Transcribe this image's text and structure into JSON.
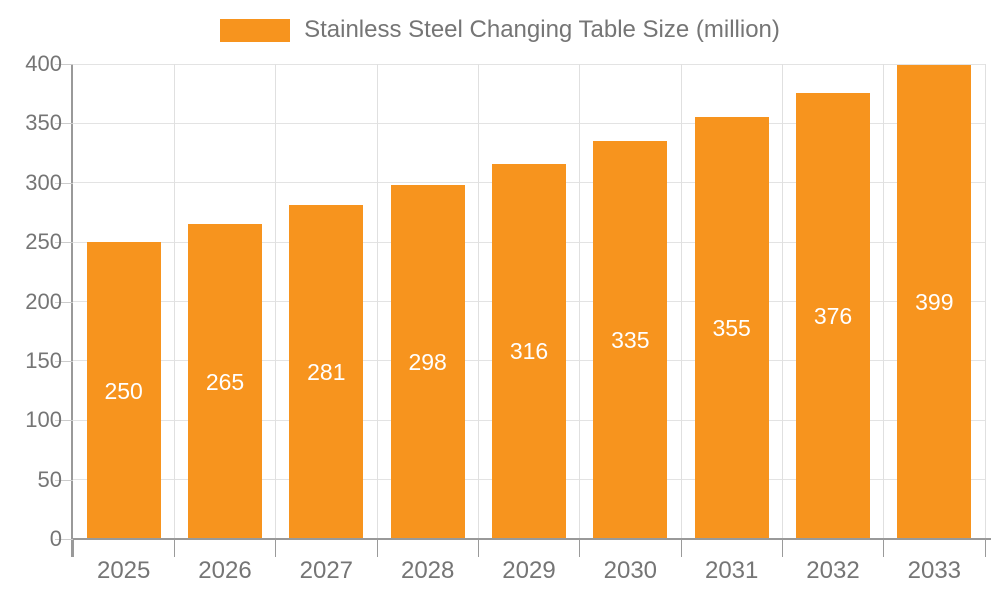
{
  "legend": {
    "label": "Stainless Steel Changing Table Size (million)"
  },
  "colors": {
    "bar": "#f7941e",
    "grid_horizontal": "#e3e3e3",
    "grid_vertical": "#e0e0e0",
    "axis": "#999999",
    "tick_label": "#757575",
    "value_label": "#ffffff",
    "background": "#ffffff"
  },
  "chart_data": {
    "type": "bar",
    "title": "Stainless Steel Changing Table Size (million)",
    "categories": [
      "2025",
      "2026",
      "2027",
      "2028",
      "2029",
      "2030",
      "2031",
      "2032",
      "2033"
    ],
    "values": [
      250,
      265,
      281,
      298,
      316,
      335,
      355,
      376,
      399
    ],
    "xlabel": "",
    "ylabel": "",
    "ylim": [
      0,
      400
    ],
    "y_ticks": [
      0,
      50,
      100,
      150,
      200,
      250,
      300,
      350,
      400
    ],
    "grid": true,
    "legend_position": "top-center",
    "value_label_position": "inside-center"
  }
}
